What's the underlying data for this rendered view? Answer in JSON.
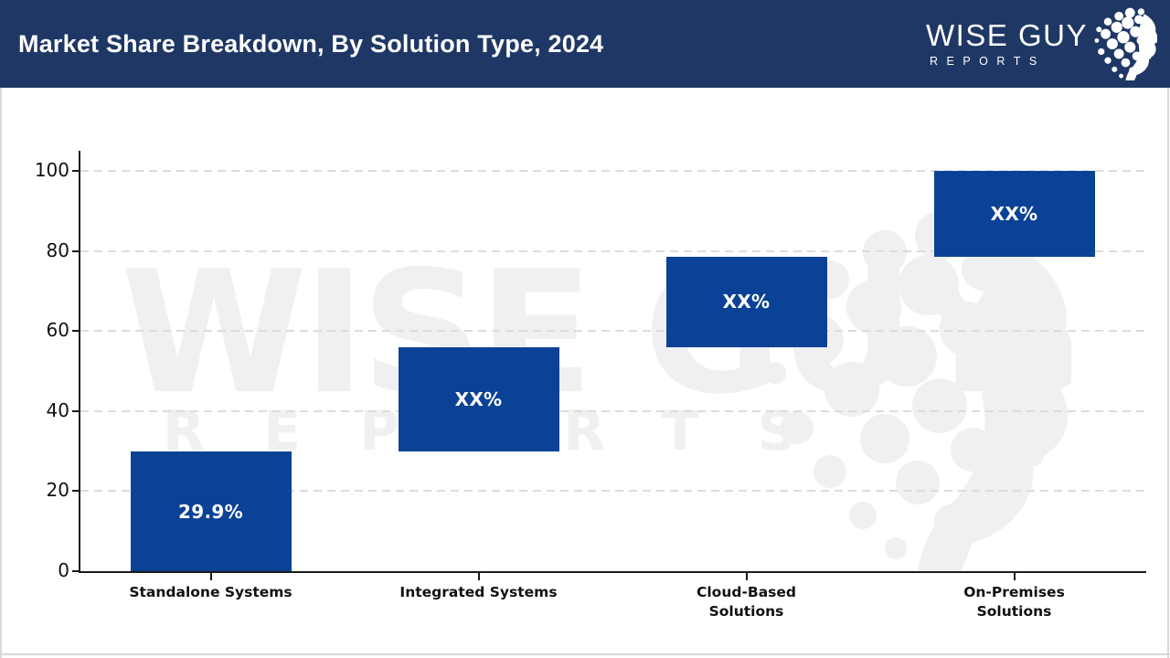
{
  "header": {
    "title": "Market Share Breakdown, By Solution Type, 2024"
  },
  "brand": {
    "name": "WISE GUY",
    "sub": "REPORTS"
  },
  "watermark": {
    "line1": "WISE GUY",
    "line2": "REPORTS"
  },
  "colors": {
    "header_bg": "#1F3764",
    "bar_fill": "#0B4296",
    "bar_label": "#FFFFFF",
    "grid_line": "#DCDCDE",
    "axis_line": "#1A1A1A",
    "tick_label": "#111111",
    "watermark": "#F0F0F3",
    "page_border": "#D9D9D9"
  },
  "chart_data": {
    "type": "bar",
    "subtype": "waterfall",
    "title": "Market Share Breakdown, By Solution Type, 2024",
    "unit": "%",
    "categories": [
      "Standalone Systems",
      "Integrated Systems",
      "Cloud-Based Solutions",
      "On-Premises Solutions"
    ],
    "categories_lines": [
      [
        "Standalone Systems"
      ],
      [
        "Integrated Systems"
      ],
      [
        "Cloud-Based",
        "Solutions"
      ],
      [
        "On-Premises",
        "Solutions"
      ]
    ],
    "segments": [
      {
        "category": "Standalone Systems",
        "start": 0,
        "end": 29.9,
        "label": "29.9%"
      },
      {
        "category": "Integrated Systems",
        "start": 29.9,
        "end": 56,
        "label": "XX%"
      },
      {
        "category": "Cloud-Based Solutions",
        "start": 56,
        "end": 78.5,
        "label": "XX%"
      },
      {
        "category": "On-Premises Solutions",
        "start": 78.5,
        "end": 100,
        "label": "XX%"
      }
    ],
    "ylim": [
      0,
      100
    ],
    "yticks": [
      0,
      20,
      40,
      60,
      80,
      100
    ],
    "grid": "horizontal-dashed",
    "legend": "none"
  }
}
